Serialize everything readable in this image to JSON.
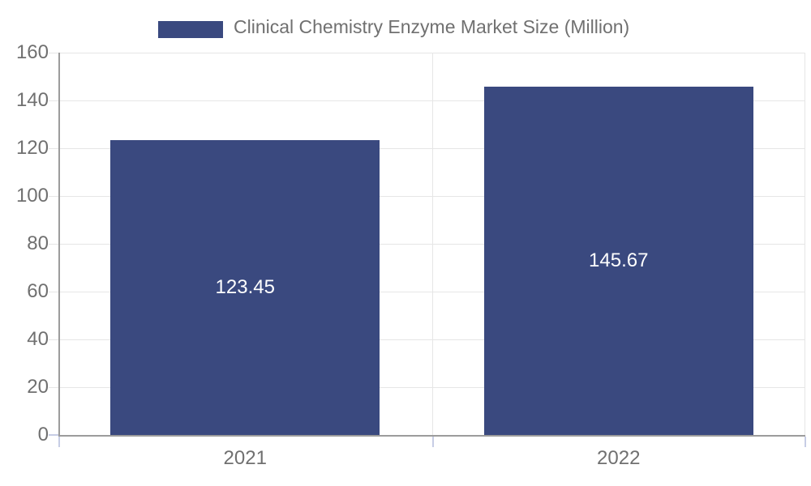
{
  "chart_data": {
    "type": "bar",
    "title": "Clinical Chemistry Enzyme Market Size (Million)",
    "legend": {
      "label": "Clinical Chemistry Enzyme Market Size (Million)",
      "position": "top"
    },
    "categories": [
      "2021",
      "2022"
    ],
    "series": [
      {
        "name": "Clinical Chemistry Enzyme Market Size (Million)",
        "values": [
          123.45,
          145.67
        ],
        "value_labels": [
          "123.45",
          "145.67"
        ]
      }
    ],
    "xlabel": "",
    "ylabel": "",
    "ylim": [
      0,
      160
    ],
    "yticks": [
      0,
      20,
      40,
      60,
      80,
      100,
      120,
      140,
      160
    ],
    "grid": true,
    "legend_position": "top-center"
  },
  "colors": {
    "bar": "#3A497F",
    "grid": "#E6E6E6",
    "axis": "#9C9C9C",
    "axis_tick": "#C7CDE5",
    "text": "#707070",
    "value_label": "#FFFFFF",
    "background": "#FFFFFF"
  }
}
